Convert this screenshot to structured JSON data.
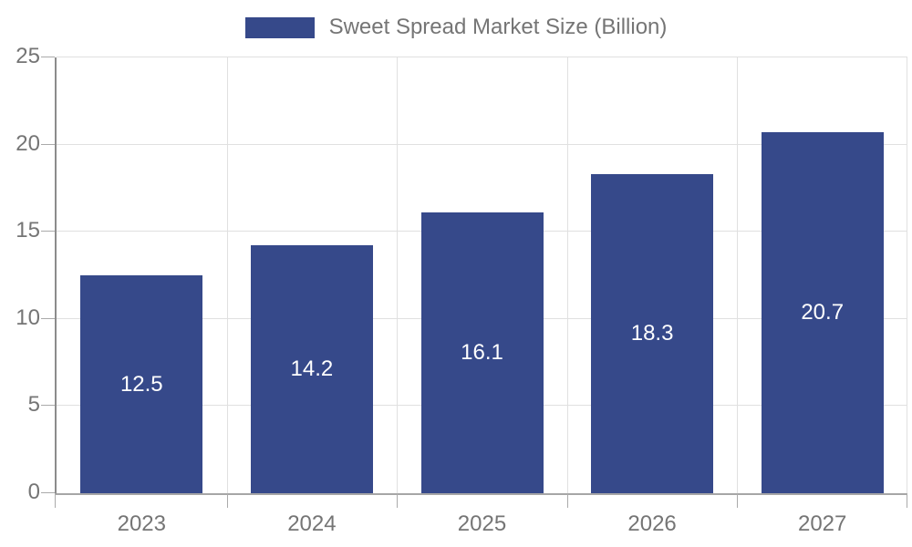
{
  "legend": {
    "label": "Sweet Spread Market Size (Billion)"
  },
  "chart_data": {
    "type": "bar",
    "title": "",
    "series_name": "Sweet Spread Market Size (Billion)",
    "categories": [
      "2023",
      "2024",
      "2025",
      "2026",
      "2027"
    ],
    "values": [
      12.5,
      14.2,
      16.1,
      18.3,
      20.7
    ],
    "value_labels": [
      "12.5",
      "14.2",
      "16.1",
      "18.3",
      "20.7"
    ],
    "xlabel": "",
    "ylabel": "",
    "ylim": [
      0,
      25
    ],
    "yticks": [
      0,
      5,
      10,
      15,
      20,
      25
    ],
    "grid": true,
    "legend_position": "top-center",
    "colors": {
      "bar": "#36498a",
      "bar_value_text": "#ffffff",
      "axis_text": "#757575",
      "legend_text": "#757575",
      "gridline": "#e0e0e0",
      "axis_line": "#a6a6a6",
      "tick": "#aaaaaa"
    }
  }
}
